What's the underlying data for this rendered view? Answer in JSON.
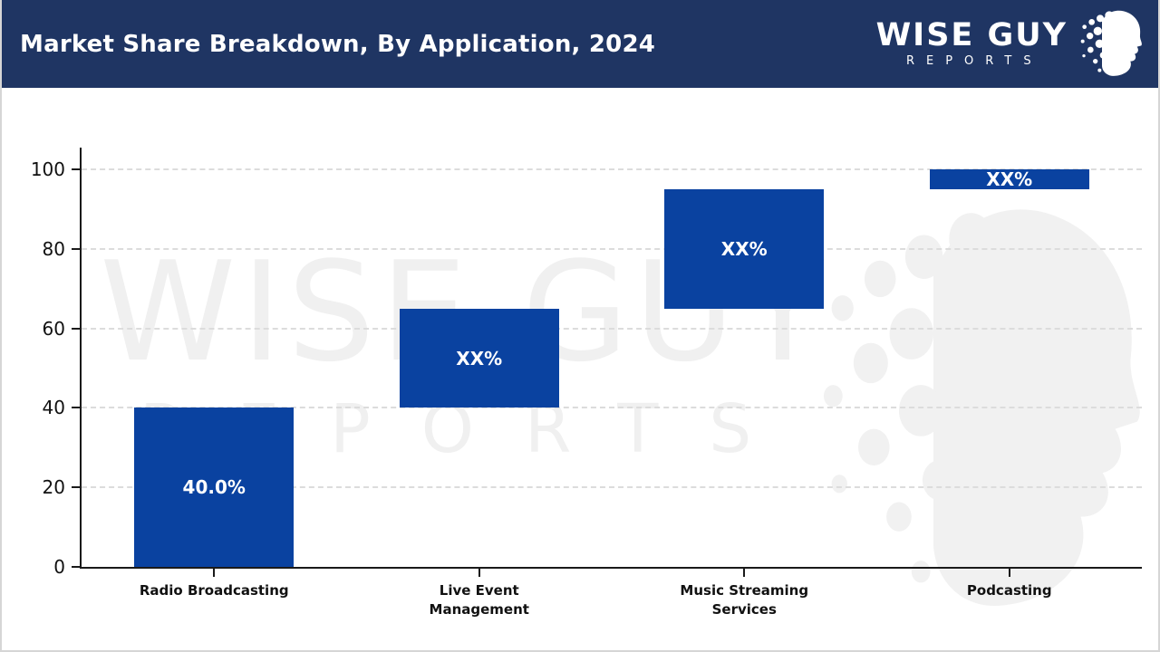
{
  "header": {
    "title": "Market Share Breakdown, By Application, 2024",
    "bg_color": "#1f3563",
    "logo": {
      "line1": "WISE GUY",
      "line2": "REPORTS"
    }
  },
  "chart_data": {
    "type": "bar",
    "subtype": "waterfall",
    "title": "Market Share Breakdown, By Application, 2024",
    "categories": [
      "Radio Broadcasting",
      "Live Event\nManagement",
      "Music Streaming\nServices",
      "Podcasting"
    ],
    "segments": [
      {
        "category": "Radio Broadcasting",
        "start": 0,
        "end": 40,
        "label": "40.0%"
      },
      {
        "category": "Live Event Management",
        "start": 40,
        "end": 65,
        "label": "XX%"
      },
      {
        "category": "Music Streaming Services",
        "start": 65,
        "end": 95,
        "label": "XX%"
      },
      {
        "category": "Podcasting",
        "start": 95,
        "end": 100,
        "label": "XX%"
      }
    ],
    "y_ticks": [
      0,
      20,
      40,
      60,
      80,
      100
    ],
    "ylim": [
      0,
      100
    ],
    "xlabel": "",
    "ylabel": "",
    "bar_color": "#0a42a0",
    "grid": "horizontal-dashed",
    "gridline_color": "#dcdcdc",
    "legend": "none",
    "watermark": {
      "line1": "WISE GUY",
      "line2": "REPORTS"
    }
  }
}
